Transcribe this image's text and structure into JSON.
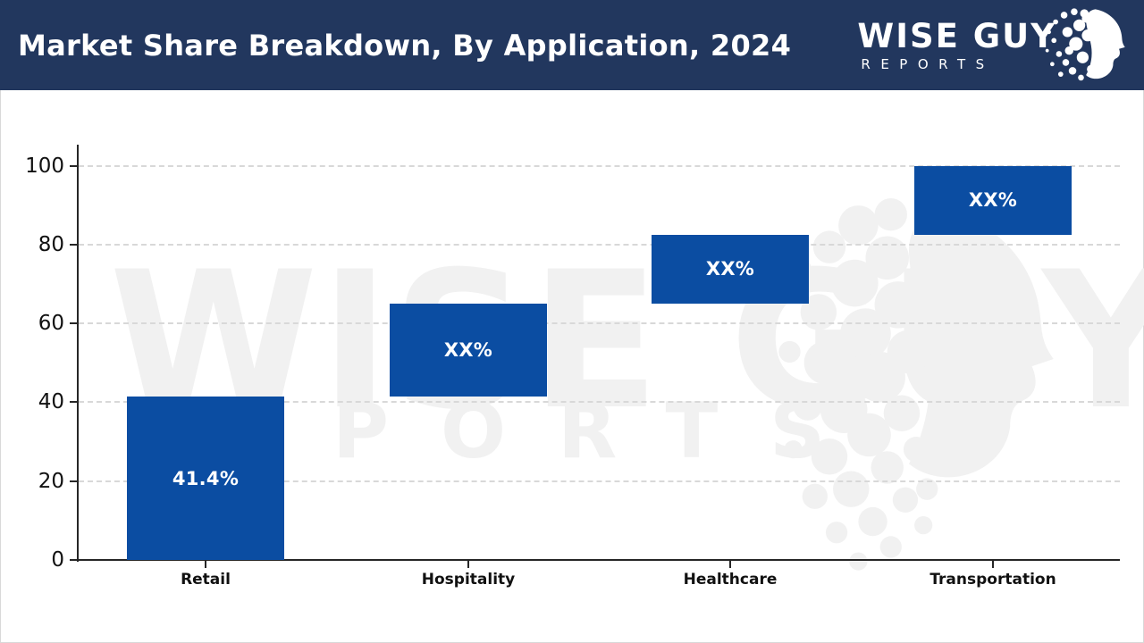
{
  "header": {
    "title": "Market Share Breakdown, By Application, 2024",
    "brand": {
      "line1": "WISE GUY",
      "line2": "REPORTS"
    }
  },
  "watermark": {
    "line1": "WISE GUY",
    "line2": "PORTS"
  },
  "chart_data": {
    "type": "bar",
    "subtype": "waterfall",
    "title": "Market Share Breakdown, By Application, 2024",
    "categories": [
      "Retail",
      "Hospitality",
      "Healthcare",
      "Transportation"
    ],
    "bars": [
      {
        "category": "Retail",
        "start": 0,
        "end": 41.4,
        "label": "41.4%"
      },
      {
        "category": "Hospitality",
        "start": 41.4,
        "end": 65.0,
        "label": "XX%"
      },
      {
        "category": "Healthcare",
        "start": 65.0,
        "end": 82.5,
        "label": "XX%"
      },
      {
        "category": "Transportation",
        "start": 82.5,
        "end": 100.0,
        "label": "XX%"
      }
    ],
    "ylim": [
      0,
      100
    ],
    "yticks": [
      0,
      20,
      40,
      60,
      80,
      100
    ],
    "grid": "horizontal-dashed",
    "legend": "none",
    "bar_color": "#0b4da2",
    "bar_label_color": "#ffffff",
    "axis_color": "#262626",
    "tick_label_color": "#111111",
    "header_color": "#22375e",
    "watermark_color": "#f1f1f1"
  }
}
